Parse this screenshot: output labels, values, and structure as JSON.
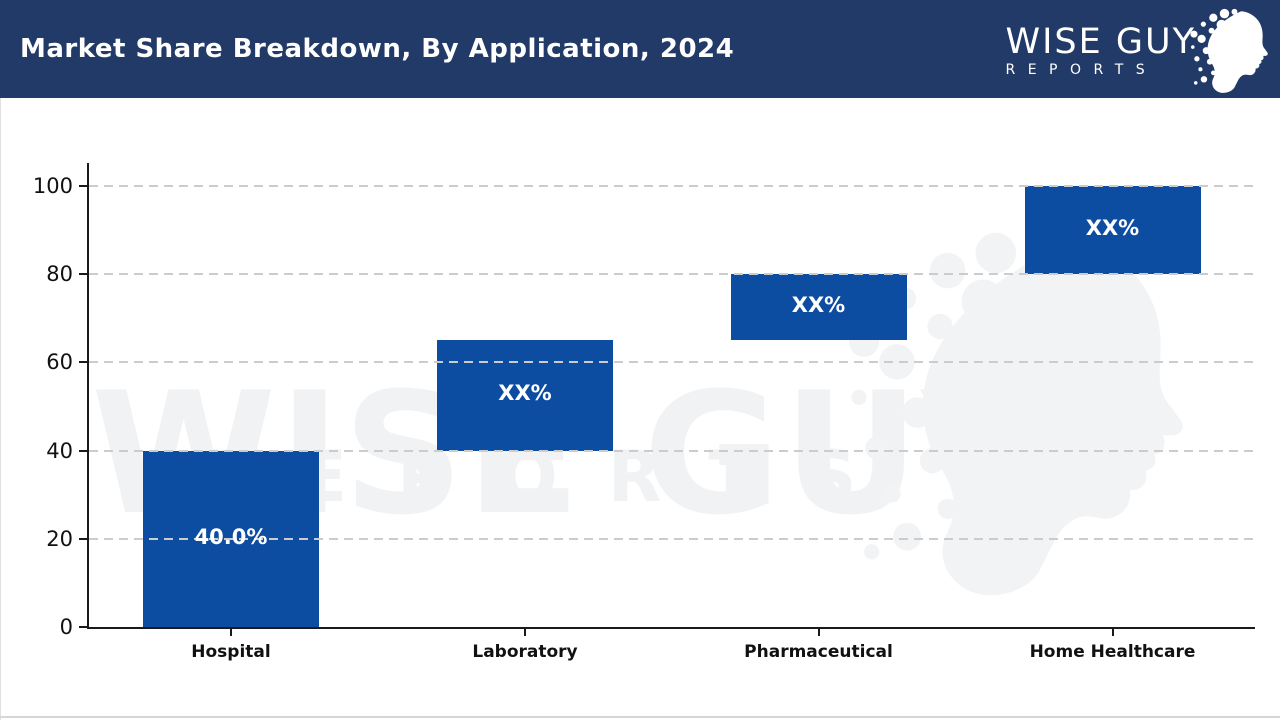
{
  "header": {
    "title": "Market Share Breakdown, By Application, 2024",
    "bg_color": "#223a67",
    "logo": {
      "line1": "WISE GUY",
      "line2": "REPORTS"
    }
  },
  "watermark": {
    "line1": "WISE GUY",
    "line2": "REPORTS"
  },
  "chart_data": {
    "type": "bar",
    "subtype": "waterfall-segments",
    "title": "Market Share Breakdown, By Application, 2024",
    "categories": [
      "Hospital",
      "Laboratory",
      "Pharmaceutical",
      "Home Healthcare"
    ],
    "segments": [
      {
        "category": "Hospital",
        "start": 0,
        "end": 40,
        "label": "40.0%"
      },
      {
        "category": "Laboratory",
        "start": 40,
        "end": 65,
        "label": "XX%"
      },
      {
        "category": "Pharmaceutical",
        "start": 65,
        "end": 80,
        "label": "XX%"
      },
      {
        "category": "Home Healthcare",
        "start": 80,
        "end": 100,
        "label": "XX%"
      }
    ],
    "values_shown_on_bars": [
      "40.0%",
      "XX%",
      "XX%",
      "XX%"
    ],
    "y_ticks": [
      0,
      20,
      40,
      60,
      80,
      100
    ],
    "ylim": [
      0,
      100
    ],
    "xlabel": "",
    "ylabel": "",
    "grid": "horizontal-dashed",
    "gridline_color": "#cccccc",
    "bar_color": "#0d4da1",
    "bar_label_color": "#ffffff",
    "axis_color": "#1a1a1a",
    "legend": "none"
  }
}
